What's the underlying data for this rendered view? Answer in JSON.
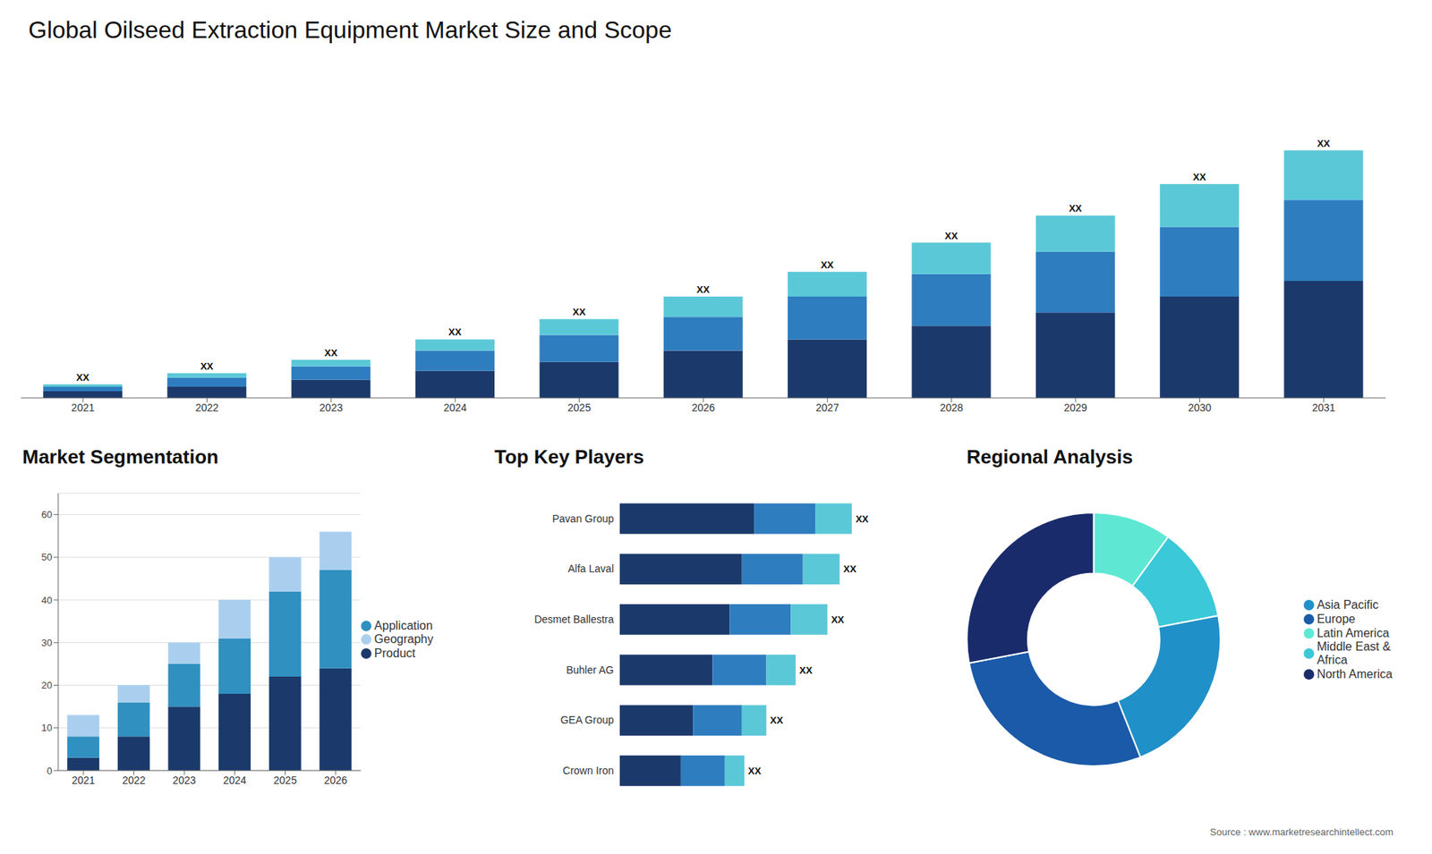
{
  "title": "Global Oilseed Extraction Equipment Market Size and Scope",
  "annotations": [
    "Source : www.marketresearchintellect.com"
  ],
  "chart_data": [
    {
      "type": "bar",
      "stacked": true,
      "categories": [
        "2021",
        "2022",
        "2023",
        "2024",
        "2025",
        "2026",
        "2027",
        "2028",
        "2029",
        "2030",
        "2031"
      ],
      "series": [
        {
          "color": "#1b3a6b",
          "values": [
            3,
            5,
            8,
            12,
            16,
            21,
            26,
            32,
            38,
            45,
            52
          ]
        },
        {
          "color": "#2e7dbf",
          "values": [
            2,
            4,
            6,
            9,
            12,
            15,
            19,
            23,
            27,
            31,
            36
          ]
        },
        {
          "color": "#5bc8d8",
          "values": [
            1,
            2,
            3,
            5,
            7,
            9,
            11,
            14,
            16,
            19,
            22
          ]
        }
      ],
      "annotations": [
        "XX",
        "XX",
        "XX",
        "XX",
        "XX",
        "XX",
        "XX",
        "XX",
        "XX",
        "XX",
        "XX"
      ],
      "ylim": [
        0,
        143
      ],
      "tick_labels": "x",
      "grid": false
    },
    {
      "type": "bar",
      "title": "Market Segmentation",
      "stacked": true,
      "categories": [
        "2021",
        "2022",
        "2023",
        "2024",
        "2025",
        "2026"
      ],
      "series": [
        {
          "name": "Product",
          "color": "#1b3a6b",
          "values": [
            3,
            8,
            15,
            18,
            22,
            24
          ]
        },
        {
          "name": "Application",
          "color": "#3090c0",
          "values": [
            5,
            8,
            10,
            13,
            20,
            23
          ]
        },
        {
          "name": "Geography",
          "color": "#aacfee",
          "values": [
            5,
            4,
            5,
            9,
            8,
            9
          ]
        }
      ],
      "ylim": [
        0,
        65
      ],
      "yticks": [
        0,
        10,
        20,
        30,
        40,
        50,
        60
      ],
      "grid": true,
      "legend": "right"
    },
    {
      "type": "bar",
      "title": "Top Key Players",
      "orientation": "horizontal",
      "stacked": true,
      "categories": [
        "Pavan Group",
        "Alfa Laval",
        "Desmet Ballestra",
        "Buhler AG",
        "GEA Group",
        "Crown Iron"
      ],
      "series": [
        {
          "color": "#1b3a6b",
          "values": [
            5.5,
            5.0,
            4.5,
            3.8,
            3.0,
            2.5
          ]
        },
        {
          "color": "#2e7dbf",
          "values": [
            2.5,
            2.5,
            2.5,
            2.2,
            2.0,
            1.8
          ]
        },
        {
          "color": "#5bc8d8",
          "values": [
            1.5,
            1.5,
            1.5,
            1.2,
            1.0,
            0.8
          ]
        }
      ],
      "annotations": [
        "XX",
        "XX",
        "XX",
        "XX",
        "XX",
        "XX"
      ],
      "xlim": [
        0,
        12
      ],
      "tick_labels": "y",
      "grid": false
    },
    {
      "type": "pie",
      "title": "Regional Analysis",
      "categories": [
        "Latin America",
        "Middle East &\nAfrica",
        "Asia Pacific",
        "Europe",
        "North America"
      ],
      "values": [
        10,
        12,
        22,
        28,
        28
      ],
      "colors": [
        "#5ee8d4",
        "#3bc8d8",
        "#2090c8",
        "#1a5aa8",
        "#1a2b6b"
      ],
      "legend": "right"
    }
  ]
}
